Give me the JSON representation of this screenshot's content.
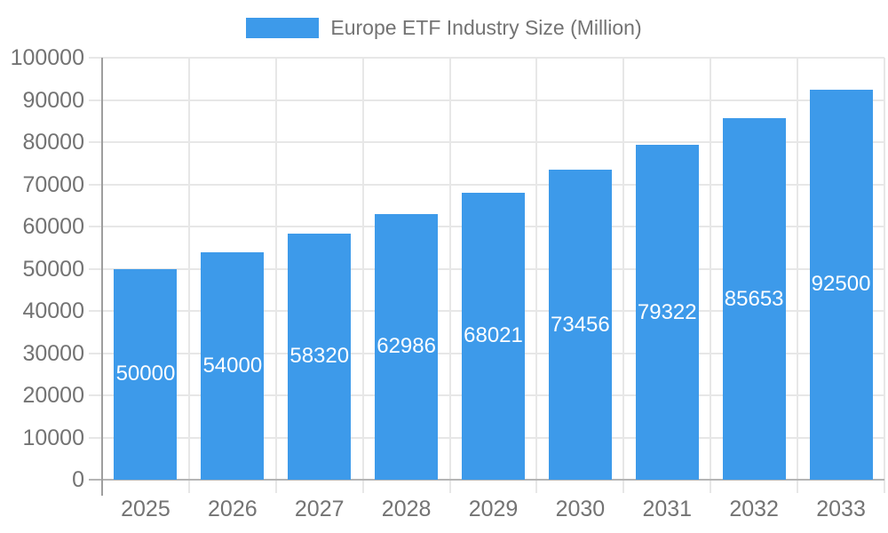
{
  "legend": {
    "label": "Europe ETF Industry Size (Million)"
  },
  "chart_data": {
    "type": "bar",
    "title": "Europe ETF Industry Size (Million)",
    "categories": [
      "2025",
      "2026",
      "2027",
      "2028",
      "2029",
      "2030",
      "2031",
      "2032",
      "2033"
    ],
    "series": [
      {
        "name": "Europe ETF Industry Size (Million)",
        "values": [
          50000,
          54000,
          58320,
          62986,
          68021,
          73456,
          79322,
          85653,
          92500
        ]
      }
    ],
    "value_labels": [
      "50000",
      "54000",
      "58320",
      "62986",
      "68021",
      "73456",
      "79322",
      "85653",
      "92500"
    ],
    "xlabel": "",
    "ylabel": "",
    "ylim": [
      0,
      100000
    ],
    "ytick_step": 10000,
    "ytick_labels": [
      "0",
      "10000",
      "20000",
      "30000",
      "40000",
      "50000",
      "60000",
      "70000",
      "80000",
      "90000",
      "100000"
    ],
    "grid": true,
    "legend_position": "top"
  },
  "colors": {
    "bar": "#3D9AEA",
    "axis_text": "#737373",
    "value_text": "#ffffff",
    "gridline": "#e7e7e7",
    "axis_line": "#9e9e9e",
    "baseline": "#b5b5b5",
    "background": "#ffffff"
  }
}
